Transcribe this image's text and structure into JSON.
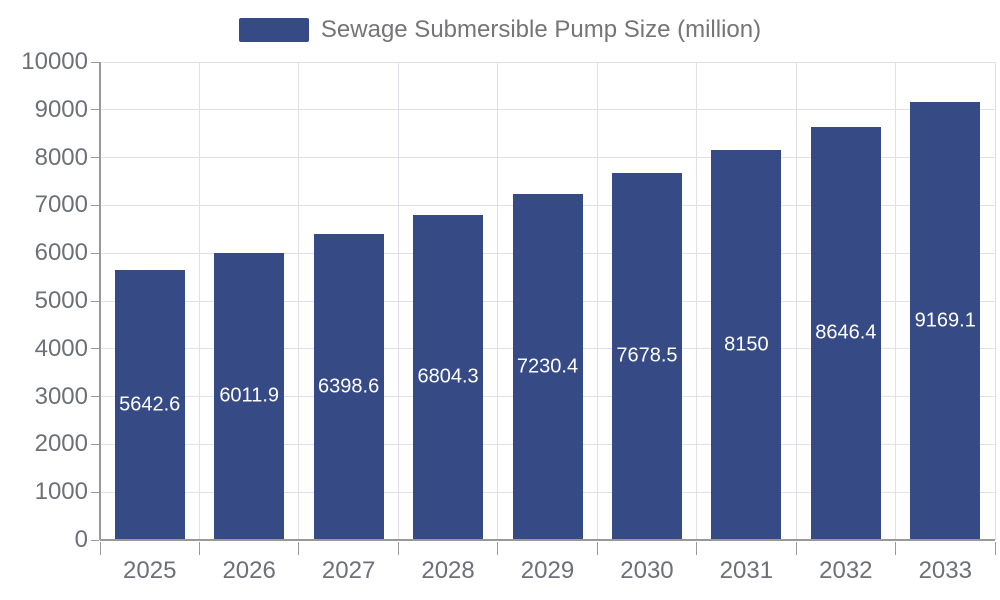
{
  "chart_data": {
    "type": "bar",
    "title": "",
    "legend": "Sewage Submersible Pump Size (million)",
    "legend_position": "top-center",
    "categories": [
      "2025",
      "2026",
      "2027",
      "2028",
      "2029",
      "2030",
      "2031",
      "2032",
      "2033"
    ],
    "series": [
      {
        "name": "Sewage Submersible Pump Size (million)",
        "values": [
          5642.6,
          6011.9,
          6398.6,
          6804.3,
          7230.4,
          7678.5,
          8150,
          8646.4,
          9169.1
        ],
        "value_labels": [
          "5642.6",
          "6011.9",
          "6398.6",
          "6804.3",
          "7230.4",
          "7678.5",
          "8150",
          "8646.4",
          "9169.1"
        ]
      }
    ],
    "xlabel": "",
    "ylabel": "",
    "ylim": [
      0,
      10000
    ],
    "y_ticks": [
      0,
      1000,
      2000,
      3000,
      4000,
      5000,
      6000,
      7000,
      8000,
      9000,
      10000
    ],
    "grid": true,
    "colors": {
      "bar": "#364a85",
      "bar_value_label": "#ffffff",
      "axis_line": "#999999",
      "axis_tick_label": "#6e7079",
      "gridline": "#e0e1e8",
      "legend_text": "#757579",
      "background": "#ffffff"
    }
  }
}
